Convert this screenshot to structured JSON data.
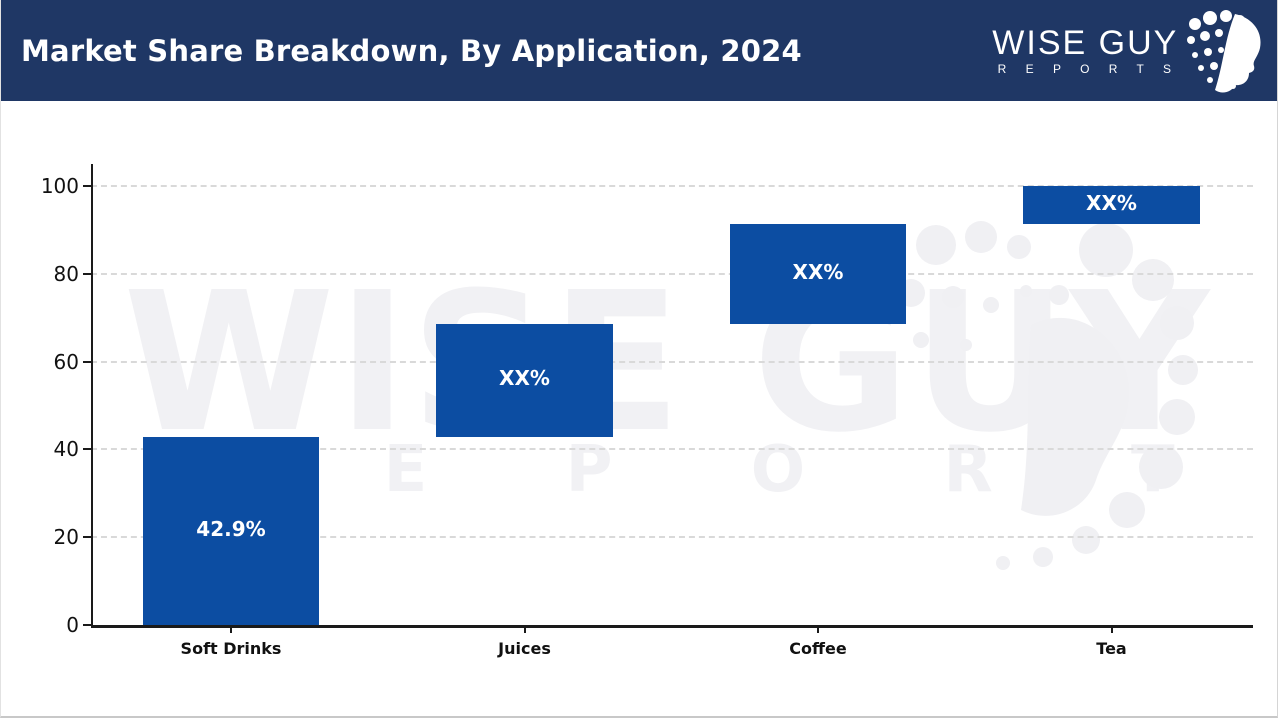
{
  "header": {
    "title": "Market Share Breakdown, By Application, 2024",
    "bg_color": "#1f3765",
    "logo": {
      "line1": "WISE GUY",
      "line2": "R E P O R T S"
    }
  },
  "watermark": {
    "line1": "WISE GUY",
    "line2": "R E P O R T S"
  },
  "chart_data": {
    "type": "bar",
    "subtype": "waterfall",
    "title": "Market Share Breakdown, By Application, 2024",
    "categories": [
      "Soft Drinks",
      "Juices",
      "Coffee",
      "Tea"
    ],
    "segments": [
      {
        "category": "Soft Drinks",
        "start": 0,
        "end": 42.9,
        "label": "42.9%"
      },
      {
        "category": "Juices",
        "start": 42.9,
        "end": 68.6,
        "label": "XX%"
      },
      {
        "category": "Coffee",
        "start": 68.6,
        "end": 91.4,
        "label": "XX%"
      },
      {
        "category": "Tea",
        "start": 91.4,
        "end": 100,
        "label": "XX%"
      }
    ],
    "yticks": [
      0,
      20,
      40,
      60,
      80,
      100
    ],
    "ylim": [
      0,
      105
    ],
    "grid": "horizontal-dashed",
    "legend": "none",
    "bar_color": "#0c4da2",
    "bar_label_color": "#ffffff",
    "axis_color": "#1a1a1a",
    "grid_color": "#d9d9d9"
  }
}
